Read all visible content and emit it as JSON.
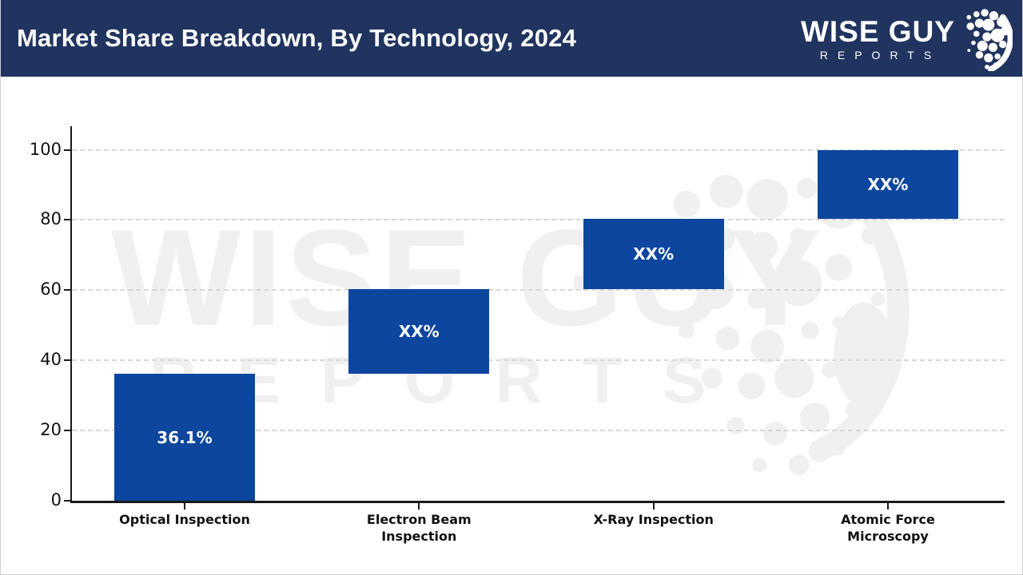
{
  "header": {
    "title": "Market Share Breakdown, By Technology, 2024",
    "bg_color": "#20345f",
    "logo": {
      "line1": "WISE GUY",
      "line2": "REPORTS"
    }
  },
  "watermark": {
    "line1": "WISE GUY",
    "line2": "REPORTS"
  },
  "chart_data": {
    "type": "bar",
    "subtype": "waterfall",
    "title": "Market Share Breakdown, By Technology, 2024",
    "categories": [
      "Optical Inspection",
      "Electron Beam Inspection",
      "X-Ray Inspection",
      "Atomic Force Microscopy"
    ],
    "category_lines": [
      [
        "Optical Inspection"
      ],
      [
        "Electron Beam",
        "Inspection"
      ],
      [
        "X-Ray Inspection"
      ],
      [
        "Atomic Force",
        "Microscopy"
      ]
    ],
    "series": [
      {
        "name": "Market Share",
        "segments": [
          {
            "start": 0,
            "end": 36.1
          },
          {
            "start": 36.1,
            "end": 60.4
          },
          {
            "start": 60.4,
            "end": 80.3
          },
          {
            "start": 80.3,
            "end": 100
          }
        ]
      }
    ],
    "values_pct": [
      36.1,
      24.3,
      19.9,
      19.7
    ],
    "bar_labels": [
      "36.1%",
      "XX%",
      "XX%",
      "XX%"
    ],
    "xlabel": "",
    "ylabel": "",
    "ylim": [
      0,
      100
    ],
    "yticks": [
      0,
      20,
      40,
      60,
      80,
      100
    ],
    "grid": "dashed horizontal gridlines",
    "legend": "none",
    "bar_color": "#0c469e",
    "bar_label_color": "#ffffff",
    "axis_color": "#1a1a1a"
  }
}
